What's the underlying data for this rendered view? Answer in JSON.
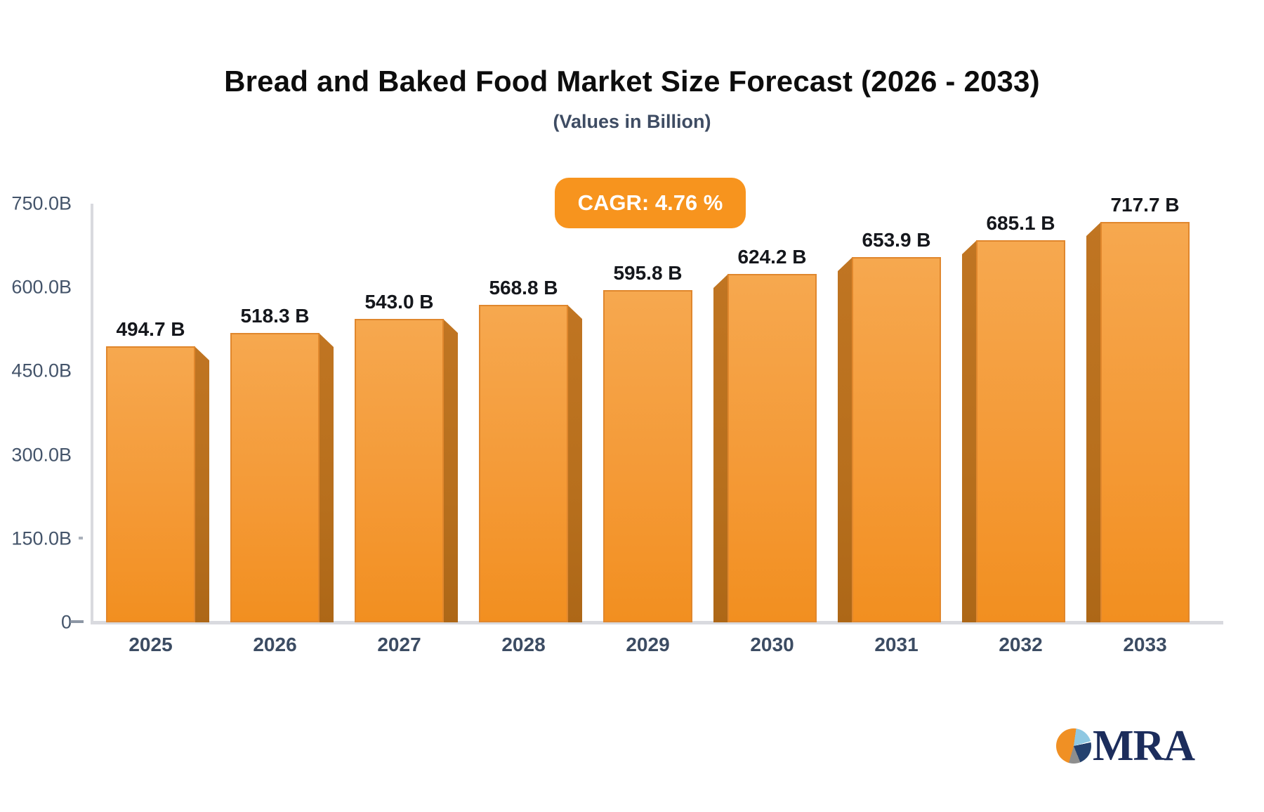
{
  "header": {
    "title": "Bread and Baked Food Market Size Forecast (2026 - 2033)",
    "subtitle": "(Values in Billion)"
  },
  "badge": {
    "label": "CAGR: 4.76 %"
  },
  "chart_data": {
    "type": "bar",
    "title": "Bread and Baked Food Market Size Forecast (2026 - 2033)",
    "subtitle": "(Values in Billion)",
    "cagr_percent": "4.76",
    "categories": [
      "2025",
      "2026",
      "2027",
      "2028",
      "2029",
      "2030",
      "2031",
      "2032",
      "2033"
    ],
    "values": [
      494.7,
      518.3,
      543.0,
      568.8,
      595.8,
      624.2,
      653.9,
      685.1,
      717.7
    ],
    "value_labels": [
      "494.7 B",
      "518.3 B",
      "543.0 B",
      "568.8 B",
      "595.8 B",
      "624.2 B",
      "653.9 B",
      "685.1 B",
      "717.7 B"
    ],
    "ytick_labels": [
      "750.0B",
      "600.0B",
      "450.0B",
      "300.0B",
      "150.0B",
      "0"
    ],
    "ytick_values": [
      750,
      600,
      450,
      300,
      150,
      0
    ],
    "ylim": [
      0,
      750
    ],
    "unit": "Billion",
    "grid": false,
    "legend": "none",
    "bar_face_color": "#f49a37",
    "bar_side_color": "#b76f1d",
    "accent_color": "#f7941e",
    "axis_color": "#d9dadf",
    "axis_label_color": "#44546a"
  },
  "logo": {
    "text": "MRA",
    "pie_colors": [
      "#f09024",
      "#8fc8e2",
      "#24416e",
      "#8e8e8e"
    ],
    "text_color": "#1c2d5c"
  }
}
